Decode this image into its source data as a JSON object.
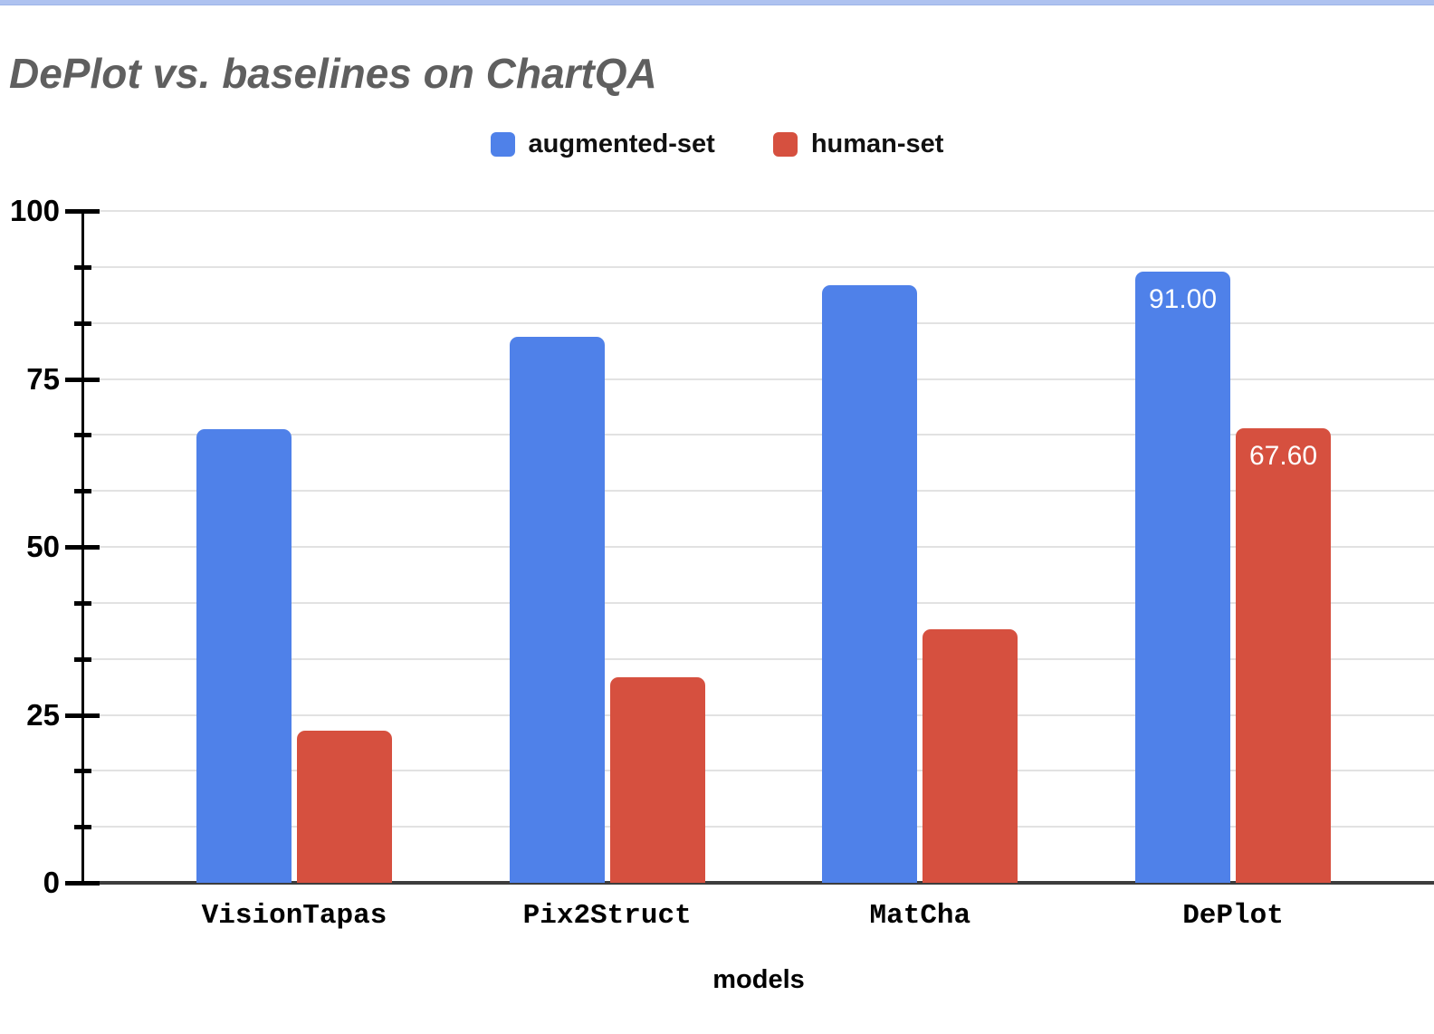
{
  "page": {
    "accent_bar_color": "#aec2f0",
    "background_color": "#ffffff",
    "title_color": "#5f5f5f"
  },
  "chart_data": {
    "type": "bar",
    "title": "DePlot vs. baselines on ChartQA",
    "xlabel": "models",
    "ylabel": "",
    "ylim": [
      0,
      100
    ],
    "yticks_major": [
      0,
      25,
      50,
      75,
      100
    ],
    "yticks_minor": [
      8.33,
      16.67,
      33.33,
      41.67,
      58.33,
      66.67,
      83.33,
      91.67
    ],
    "grid": true,
    "legend_position": "top-center",
    "categories": [
      "VisionTapas",
      "Pix2Struct",
      "MatCha",
      "DePlot"
    ],
    "series": [
      {
        "name": "augmented-set",
        "color": "#4f81e9",
        "values": [
          67.5,
          81.3,
          88.9,
          91.0
        ],
        "value_labels": [
          null,
          null,
          null,
          "91.00"
        ]
      },
      {
        "name": "human-set",
        "color": "#d6503f",
        "values": [
          22.6,
          30.6,
          37.8,
          67.6
        ],
        "value_labels": [
          null,
          null,
          null,
          "67.60"
        ]
      }
    ]
  }
}
